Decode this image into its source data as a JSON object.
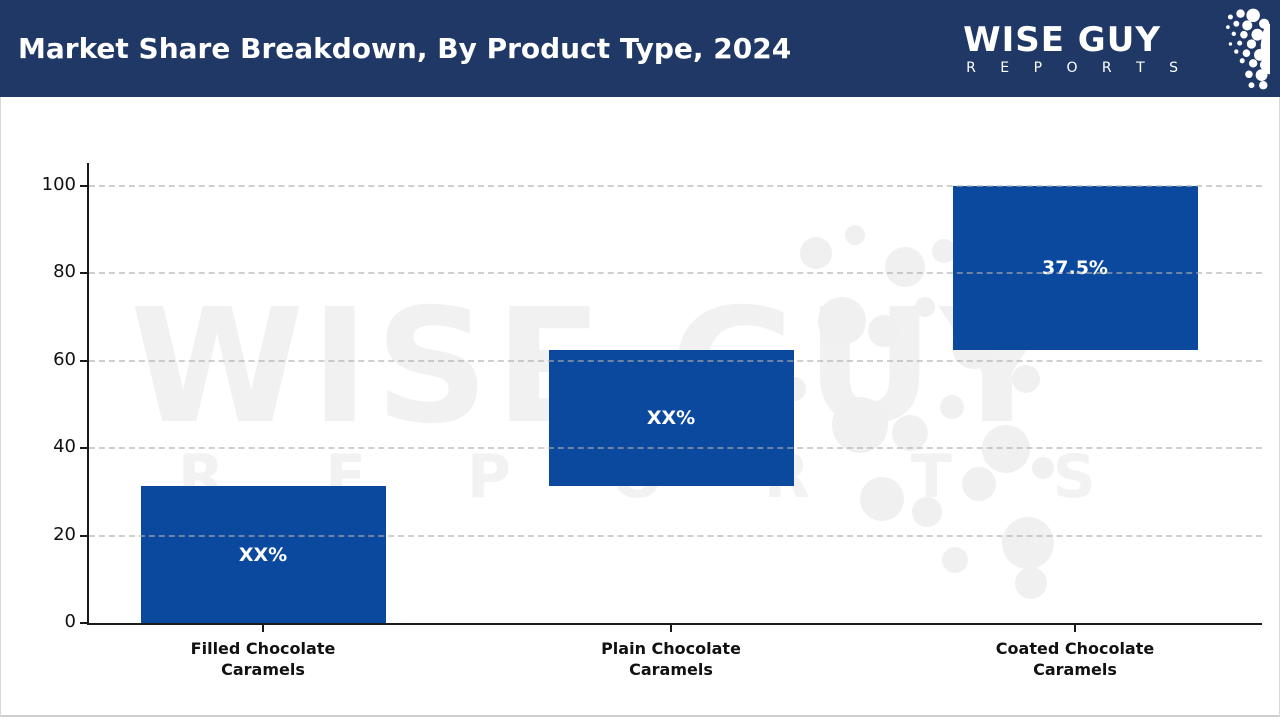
{
  "header": {
    "title": "Market Share Breakdown, By Product Type, 2024",
    "logo": {
      "line1": "WISE GUY",
      "line2": "R E P O R T S",
      "head_icon": "dotted-face-profile"
    }
  },
  "watermark": {
    "line1": "WISE GUY",
    "line2": "R E P O R T S"
  },
  "colors": {
    "header_bg": "#203865",
    "bar": "#0a499e",
    "grid": "#d9d9d9",
    "axis": "#1a1a1a",
    "bar_label_text": "#ffffff",
    "title_text": "#ffffff"
  },
  "chart_data": {
    "type": "bar",
    "subtype": "waterfall",
    "title": "Market Share Breakdown, By Product Type, 2024",
    "categories": [
      [
        "Filled Chocolate",
        "Caramels"
      ],
      [
        "Plain Chocolate",
        "Caramels"
      ],
      [
        "Coated Chocolate",
        "Caramels"
      ]
    ],
    "segments": [
      {
        "category": "Filled Chocolate Caramels",
        "start": 0,
        "end": 31.25,
        "label": "XX%"
      },
      {
        "category": "Plain Chocolate Caramels",
        "start": 31.25,
        "end": 62.5,
        "label": "XX%"
      },
      {
        "category": "Coated Chocolate Caramels",
        "start": 62.5,
        "end": 100,
        "label": "37.5%"
      }
    ],
    "ylim": [
      0,
      100
    ],
    "yticks": [
      0,
      20,
      40,
      60,
      80,
      100
    ],
    "xlabel": "",
    "ylabel": "",
    "grid": "horizontal-dashed",
    "legend": "none"
  }
}
